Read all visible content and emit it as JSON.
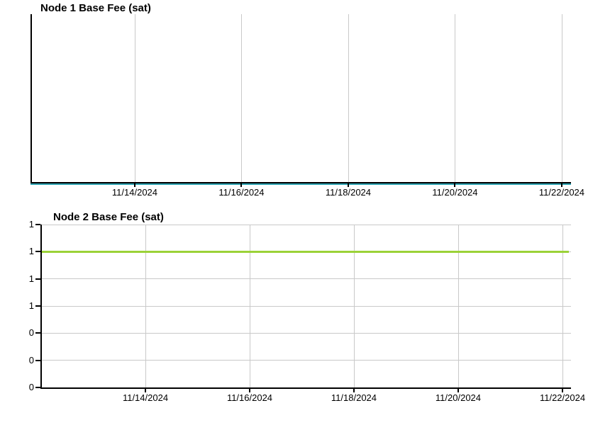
{
  "page": {
    "background": "#ffffff",
    "text_color": "#000000",
    "gridline_color": "#c9c9c9",
    "axis_color": "#000000"
  },
  "chart_data": [
    {
      "type": "line",
      "title": "Node 1 Base Fee (sat)",
      "xlabel": "",
      "ylabel": "",
      "legend": "none",
      "grid": "vertical-only",
      "y_axis_labels_visible": false,
      "x_ticks": [
        {
          "label": "11/14/2024",
          "f": 0.1929
        },
        {
          "label": "11/16/2024",
          "f": 0.3904
        },
        {
          "label": "11/18/2024",
          "f": 0.5879
        },
        {
          "label": "11/20/2024",
          "f": 0.7854
        },
        {
          "label": "11/22/2024",
          "f": 0.9829
        }
      ],
      "series": [
        {
          "key": "node1-base-fee",
          "name": "Node 1 Base Fee",
          "color": "#2fa4b2",
          "constant_value": 0,
          "description": "flat line lying on the x-axis for the entire date range",
          "hugs_axis": true,
          "x_end_fraction": 1.0
        }
      ]
    },
    {
      "type": "line",
      "title": "Node 2 Base Fee (sat)",
      "xlabel": "",
      "ylabel": "",
      "legend": "none",
      "grid": "both",
      "x_ticks": [
        {
          "label": "11/14/2024",
          "f": 0.1979
        },
        {
          "label": "11/16/2024",
          "f": 0.3944
        },
        {
          "label": "11/18/2024",
          "f": 0.5909
        },
        {
          "label": "11/20/2024",
          "f": 0.7874
        },
        {
          "label": "11/22/2024",
          "f": 0.984
        }
      ],
      "y_axis": {
        "min": 0,
        "max": 1.2,
        "ticks": [
          {
            "label": "1",
            "value": 1.2
          },
          {
            "label": "1",
            "value": 1.0
          },
          {
            "label": "1",
            "value": 0.8
          },
          {
            "label": "1",
            "value": 0.6
          },
          {
            "label": "0",
            "value": 0.4
          },
          {
            "label": "0",
            "value": 0.2
          },
          {
            "label": "0",
            "value": 0.0
          }
        ]
      },
      "series": [
        {
          "key": "node2-base-fee",
          "name": "Node 2 Base Fee",
          "color": "#9bd238",
          "constant_value": 1.0,
          "description": "flat line at 1 sat for the entire date range",
          "x_end_fraction": 0.996
        }
      ]
    }
  ]
}
